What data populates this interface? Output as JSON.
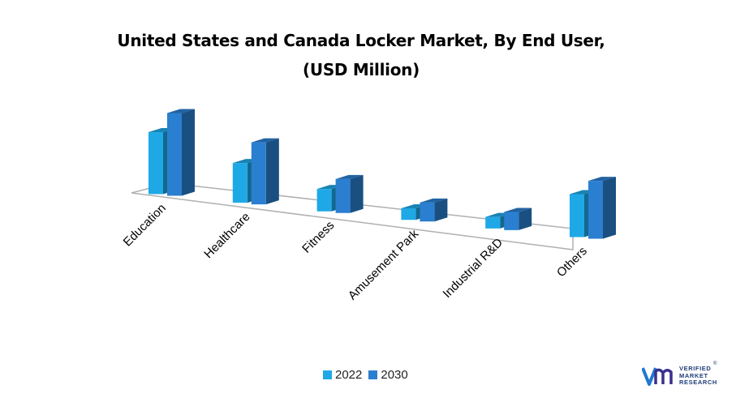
{
  "chart_data": {
    "type": "bar",
    "title_line1": "United States and Canada Locker Market, By End User,",
    "title_line2": "(USD Million)",
    "categories": [
      "Education",
      "Healthcare",
      "Fitness",
      "Amusement Park",
      "Industrial R&D",
      "Others"
    ],
    "series": [
      {
        "name": "2022",
        "values": [
          75,
          48,
          27,
          14,
          14,
          52
        ],
        "color": "#1fa8e6"
      },
      {
        "name": "2030",
        "values": [
          100,
          75,
          41,
          23,
          22,
          70
        ],
        "color": "#2a7fd0"
      }
    ],
    "ylim": [
      0,
      110
    ],
    "legend_position": "bottom",
    "grid": false
  },
  "logo": {
    "line1": "VERIFIED",
    "line2": "MARKET",
    "line3": "RESEARCH",
    "mark": "®",
    "colors": {
      "left": "#1f78d1",
      "right": "#3b2f8f"
    }
  }
}
